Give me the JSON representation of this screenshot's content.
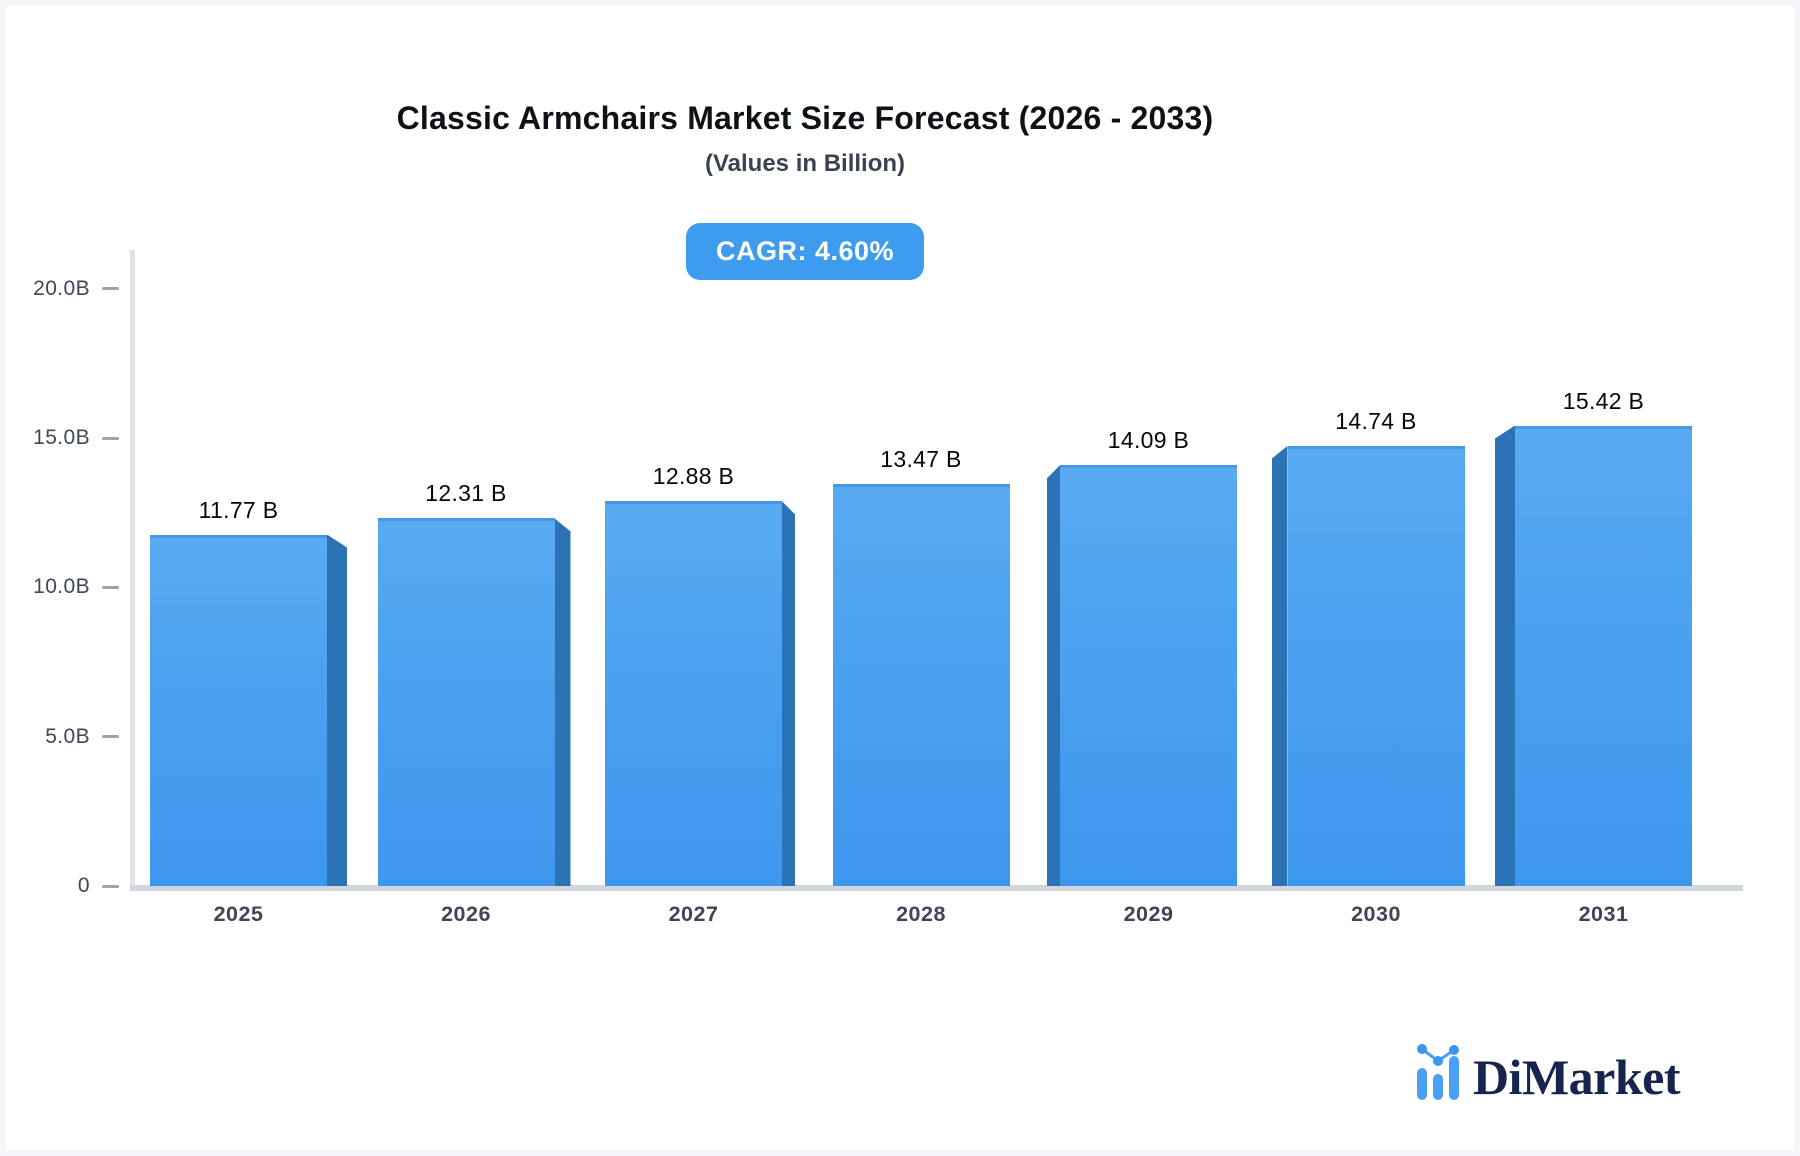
{
  "page": {
    "background": "#f3f5f8",
    "card_background": "#ffffff"
  },
  "header": {
    "title": "Classic Armchairs Market Size Forecast (2026 - 2033)",
    "subtitle": "(Values in Billion)"
  },
  "badge": {
    "label": "CAGR: 4.60%",
    "background": "#3d9cee",
    "text_color": "#ffffff"
  },
  "chart_data": {
    "type": "bar",
    "title": "Classic Armchairs Market Size Forecast (2026 - 2033)",
    "subtitle": "(Values in Billion)",
    "categories": [
      "2025",
      "2026",
      "2027",
      "2028",
      "2029",
      "2030",
      "2031"
    ],
    "values": [
      11.77,
      12.31,
      12.88,
      13.47,
      14.09,
      14.74,
      15.42
    ],
    "value_labels": [
      "11.77 B",
      "12.31 B",
      "12.88 B",
      "13.47 B",
      "14.09 B",
      "14.74 B",
      "15.42 B"
    ],
    "unit": "B",
    "ylim": [
      0,
      20
    ],
    "y_ticks": [
      {
        "value": 20,
        "label": "20.0B"
      },
      {
        "value": 15,
        "label": "15.0B"
      },
      {
        "value": 10,
        "label": "10.0B"
      },
      {
        "value": 5,
        "label": "5.0B"
      },
      {
        "value": 0,
        "label": "0"
      }
    ],
    "grid": false,
    "legend": "none",
    "cagr": "4.60%",
    "bar_color_top": "#59aaf1",
    "bar_color_bottom": "#3e97ee",
    "bar_side_color": "#2b73b4",
    "axis_color": "#d3d7dd",
    "tick_color": "#9aa3ae",
    "tick_label_color": "#3d4757"
  },
  "logo": {
    "name": "DiMarket",
    "icon": "bar-chart-logo-icon",
    "icon_color": "#4aa0f5",
    "text_color": "#15254b"
  }
}
